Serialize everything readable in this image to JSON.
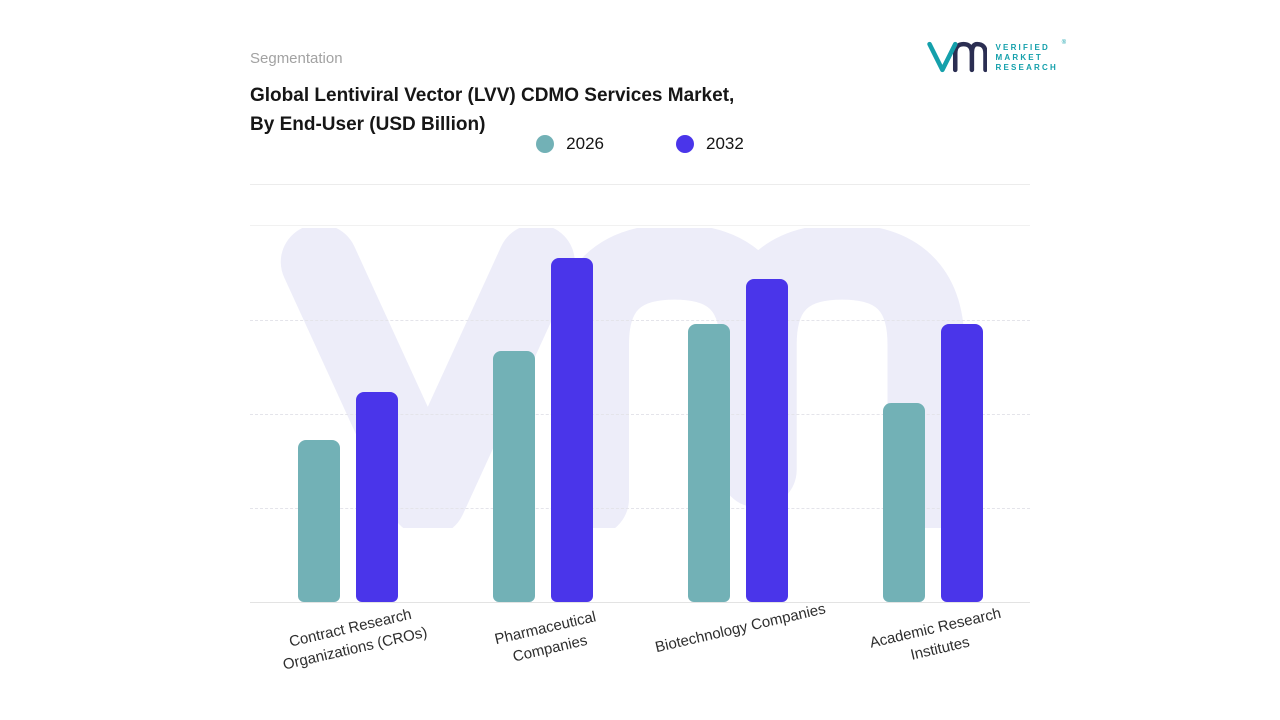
{
  "header": {
    "segmentation": "Segmentation",
    "title_line1": "Global Lentiviral Vector (LVV) CDMO Services Market,",
    "title_line2": "By End-User (USD Billion)"
  },
  "logo": {
    "line1": "VERIFIED",
    "line2": "MARKET",
    "line3": "RESEARCH",
    "registered_mark": "®",
    "teal": "#14a0ab",
    "navy": "#2b2e52"
  },
  "legend": [
    {
      "label": "2026",
      "color": "#72b1b6"
    },
    {
      "label": "2032",
      "color": "#4a35ea"
    }
  ],
  "chart_data": {
    "type": "bar",
    "title": "Global Lentiviral Vector (LVV) CDMO Services Market, By End-User (USD Billion)",
    "categories": [
      "Contract Research Organizations (CROs)",
      "Pharmaceutical Companies",
      "Biotechnology Companies",
      "Academic Research Institutes"
    ],
    "series": [
      {
        "name": "2026",
        "color": "#72b1b6",
        "values": [
          4.7,
          7.3,
          8.1,
          5.8
        ]
      },
      {
        "name": "2032",
        "color": "#4a35ea",
        "values": [
          6.1,
          10.0,
          9.4,
          8.1
        ]
      }
    ],
    "xlabel": "",
    "ylabel": "USD Billion",
    "ylim": [
      0,
      11
    ],
    "grid": "dashed-horizontal",
    "legend_position": "top",
    "note": "values estimated from bar heights; no numeric axis labels shown"
  }
}
